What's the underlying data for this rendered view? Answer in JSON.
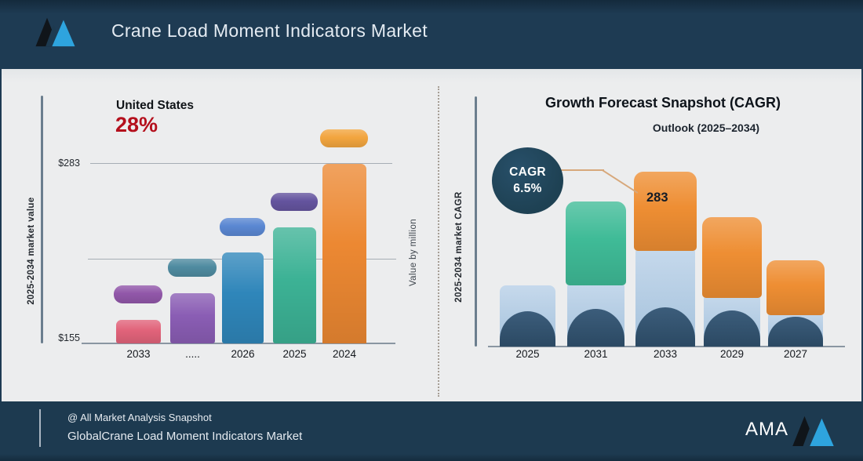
{
  "header": {
    "title": "Crane Load Moment Indicators Market",
    "brand": "AMA"
  },
  "chart_data": [
    {
      "type": "bar",
      "panel": "left",
      "title": "United States",
      "highlight_value": "28%",
      "y_axis_label": "2025-2034 market value",
      "secondary_axis_label": "Value by million",
      "y_ticks": [
        {
          "label": "$283",
          "value": 283
        },
        {
          "label": "$155",
          "value": 155
        }
      ],
      "ylim": [
        155,
        283
      ],
      "grid": "two horizontal gridlines",
      "categories": [
        "2033",
        ".....",
        "2026",
        "2025",
        "2024"
      ],
      "values": [
        172,
        191,
        220,
        238,
        283
      ],
      "bar_colors": [
        "#e1637a",
        "#8a5db4",
        "#2f86ba",
        "#3cb295",
        "#ec8832"
      ],
      "marker_colors": [
        "#9157a9",
        "#4f8ba0",
        "#5a87d2",
        "#64549e",
        "#f2a53f"
      ],
      "marker_note": "floating rounded capsule above each bar"
    },
    {
      "type": "bar",
      "panel": "right",
      "title": "Growth Forecast Snapshot (CAGR)",
      "subtitle": "Outlook (2025–2034)",
      "y_axis_label": "2025-2034 market CAGR",
      "categories": [
        "2025",
        "2031",
        "2033",
        "2029",
        "2027"
      ],
      "series": [
        {
          "name": "base",
          "values": [
            45,
            48,
            50,
            46,
            38
          ]
        },
        {
          "name": "mid",
          "values": [
            33,
            36,
            78,
            22,
            8
          ]
        },
        {
          "name": "top",
          "values": [
            0,
            101,
            95,
            97,
            64
          ]
        }
      ],
      "top_colors": [
        null,
        "#3fbb97",
        "#ee8e33",
        "#ee8e33",
        "#ee8e33"
      ],
      "segment_palette": {
        "mid": "#b7cee5",
        "base": "#2f4f6b"
      },
      "values_note": "relative stacked heights estimated from pixels; no numeric axis shown",
      "annotation": {
        "text": "283",
        "bar": "2033"
      },
      "callout": {
        "line1": "CAGR",
        "line2": "6.5%",
        "color": "#1e4153"
      }
    }
  ],
  "footer": {
    "line1": "@ All Market Analysis Snapshot",
    "line2": "GlobalCrane Load Moment Indicators Market",
    "brand": "AMA"
  }
}
